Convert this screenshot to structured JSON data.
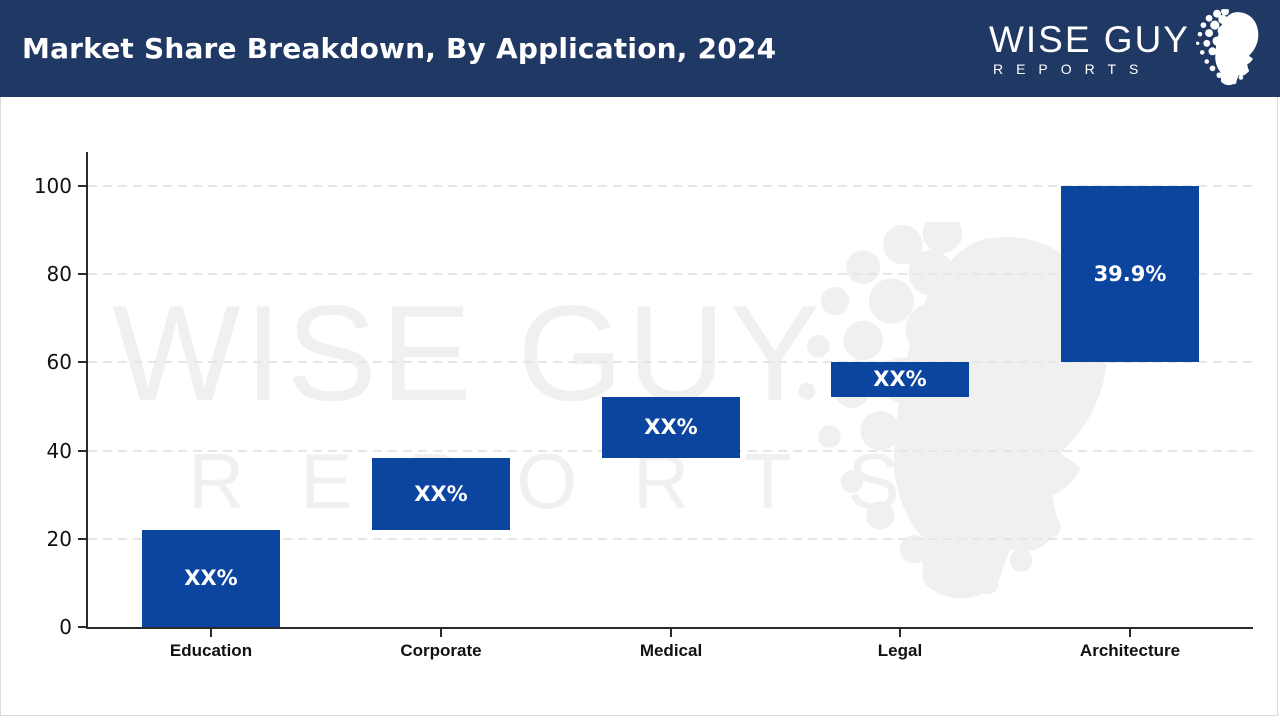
{
  "header": {
    "title": "Market Share Breakdown, By Application, 2024",
    "logo": {
      "name": "WISE GUY",
      "sub": "REPORTS"
    }
  },
  "watermark": {
    "line1": "WISE GUY",
    "line2": "REPORTS"
  },
  "colors": {
    "header_bg": "#203864",
    "bar": "#0c45a0",
    "bar_label_text": "#ffffff",
    "grid": "#e6e6e6",
    "axis": "#2b2b2b",
    "tick_label": "#111111",
    "watermark": "#f0f0f0"
  },
  "chart_data": {
    "type": "bar",
    "subtype": "waterfall-floating-bars",
    "title": "Market Share Breakdown, By Application, 2024",
    "categories": [
      "Education",
      "Corporate",
      "Medical",
      "Legal",
      "Architecture"
    ],
    "segments": [
      {
        "category": "Education",
        "start": 0,
        "end": 22,
        "label": "XX%"
      },
      {
        "category": "Corporate",
        "start": 22,
        "end": 38.4,
        "label": "XX%"
      },
      {
        "category": "Medical",
        "start": 38.4,
        "end": 52.2,
        "label": "XX%"
      },
      {
        "category": "Legal",
        "start": 52.2,
        "end": 60.1,
        "label": "XX%"
      },
      {
        "category": "Architecture",
        "start": 60.1,
        "end": 100,
        "label": "39.9%"
      }
    ],
    "ylim": [
      0,
      100
    ],
    "yticks": [
      0,
      20,
      40,
      60,
      80,
      100
    ],
    "xlabel": "",
    "ylabel": "",
    "grid": "horizontal-dashed",
    "legend": "none"
  }
}
